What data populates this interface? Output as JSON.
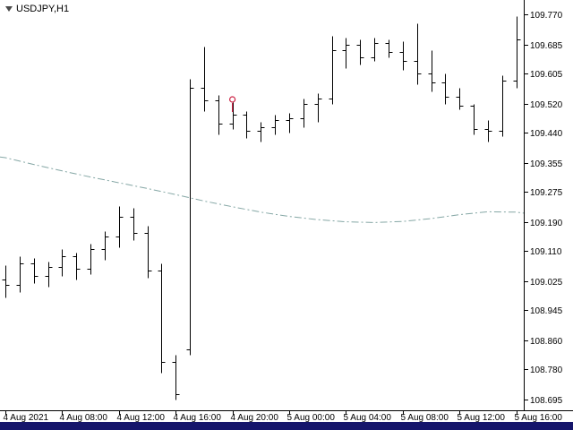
{
  "window": {
    "symbol_label": "USDJPY,H1"
  },
  "colors": {
    "background": "#ffffff",
    "bar": "#000000",
    "axis_text": "#000000",
    "axis_line": "#000000",
    "ma_line": "#85a7a5",
    "marker": "#cc2244",
    "taskbar_strip": "#15156b"
  },
  "chart_data": {
    "type": "ohlc-bar",
    "title": "USDJPY,H1",
    "symbol": "USDJPY",
    "timeframe": "H1",
    "ylim": [
      108.68,
      109.79
    ],
    "grid": "none",
    "legend": "none",
    "y_ticks": [
      "109.770",
      "109.685",
      "109.605",
      "109.520",
      "109.440",
      "109.355",
      "109.275",
      "109.190",
      "109.110",
      "109.025",
      "108.945",
      "108.860",
      "108.780",
      "108.695"
    ],
    "x_ticks": [
      {
        "label": "4 Aug 2021",
        "bar": 0
      },
      {
        "label": "4 Aug 08:00",
        "bar": 4
      },
      {
        "label": "4 Aug 12:00",
        "bar": 8
      },
      {
        "label": "4 Aug 16:00",
        "bar": 12
      },
      {
        "label": "4 Aug 20:00",
        "bar": 16
      },
      {
        "label": "5 Aug 00:00",
        "bar": 20
      },
      {
        "label": "5 Aug 04:00",
        "bar": 24
      },
      {
        "label": "5 Aug 08:00",
        "bar": 28
      },
      {
        "label": "5 Aug 12:00",
        "bar": 32
      },
      {
        "label": "5 Aug 16:00",
        "bar": 36
      }
    ],
    "bars": [
      [
        "4 Aug 04:00",
        109.03,
        109.07,
        108.98,
        109.015
      ],
      [
        "4 Aug 05:00",
        109.015,
        109.095,
        108.995,
        109.075
      ],
      [
        "4 Aug 06:00",
        109.075,
        109.09,
        109.02,
        109.04
      ],
      [
        "4 Aug 07:00",
        109.04,
        109.08,
        109.01,
        109.065
      ],
      [
        "4 Aug 08:00",
        109.065,
        109.115,
        109.04,
        109.095
      ],
      [
        "4 Aug 09:00",
        109.095,
        109.105,
        109.03,
        109.06
      ],
      [
        "4 Aug 10:00",
        109.06,
        109.13,
        109.045,
        109.115
      ],
      [
        "4 Aug 11:00",
        109.115,
        109.165,
        109.085,
        109.15
      ],
      [
        "4 Aug 12:00",
        109.15,
        109.235,
        109.12,
        109.205
      ],
      [
        "4 Aug 13:00",
        109.205,
        109.23,
        109.14,
        109.16
      ],
      [
        "4 Aug 14:00",
        109.16,
        109.18,
        109.035,
        109.055
      ],
      [
        "4 Aug 15:00",
        109.055,
        109.075,
        108.77,
        108.8
      ],
      [
        "4 Aug 16:00",
        108.8,
        108.82,
        108.695,
        108.71
      ],
      [
        "4 Aug 17:00",
        108.835,
        109.59,
        108.82,
        109.565
      ],
      [
        "4 Aug 18:00",
        109.565,
        109.68,
        109.5,
        109.53
      ],
      [
        "4 Aug 19:00",
        109.53,
        109.545,
        109.435,
        109.465
      ],
      [
        "4 Aug 20:00",
        109.465,
        109.525,
        109.45,
        109.49
      ],
      [
        "4 Aug 21:00",
        109.49,
        109.5,
        109.425,
        109.445
      ],
      [
        "4 Aug 22:00",
        109.445,
        109.47,
        109.415,
        109.455
      ],
      [
        "4 Aug 23:00",
        109.455,
        109.49,
        109.435,
        109.475
      ],
      [
        "5 Aug 00:00",
        109.475,
        109.495,
        109.44,
        109.48
      ],
      [
        "5 Aug 01:00",
        109.48,
        109.535,
        109.455,
        109.52
      ],
      [
        "5 Aug 02:00",
        109.52,
        109.55,
        109.47,
        109.535
      ],
      [
        "5 Aug 03:00",
        109.535,
        109.71,
        109.52,
        109.67
      ],
      [
        "5 Aug 04:00",
        109.67,
        109.705,
        109.62,
        109.685
      ],
      [
        "5 Aug 05:00",
        109.685,
        109.7,
        109.63,
        109.65
      ],
      [
        "5 Aug 06:00",
        109.65,
        109.705,
        109.64,
        109.69
      ],
      [
        "5 Aug 07:00",
        109.69,
        109.7,
        109.65,
        109.665
      ],
      [
        "5 Aug 08:00",
        109.665,
        109.695,
        109.615,
        109.64
      ],
      [
        "5 Aug 09:00",
        109.64,
        109.745,
        109.575,
        109.605
      ],
      [
        "5 Aug 10:00",
        109.605,
        109.67,
        109.555,
        109.58
      ],
      [
        "5 Aug 11:00",
        109.58,
        109.605,
        109.52,
        109.54
      ],
      [
        "5 Aug 12:00",
        109.54,
        109.565,
        109.505,
        109.515
      ],
      [
        "5 Aug 13:00",
        109.515,
        109.52,
        109.435,
        109.45
      ],
      [
        "5 Aug 14:00",
        109.45,
        109.475,
        109.415,
        109.445
      ],
      [
        "5 Aug 15:00",
        109.445,
        109.6,
        109.43,
        109.585
      ],
      [
        "5 Aug 16:00",
        109.585,
        109.765,
        109.565,
        109.7
      ]
    ],
    "ma_line": {
      "style": "dash-dot",
      "points": [
        [
          -0.4,
          109.372
        ],
        [
          0,
          109.37
        ],
        [
          2,
          109.351
        ],
        [
          4,
          109.333
        ],
        [
          6,
          109.316
        ],
        [
          8,
          109.3
        ],
        [
          10,
          109.284
        ],
        [
          12,
          109.267
        ],
        [
          14,
          109.249
        ],
        [
          16,
          109.233
        ],
        [
          18,
          109.218
        ],
        [
          20,
          109.206
        ],
        [
          22,
          109.197
        ],
        [
          24,
          109.191
        ],
        [
          26,
          109.189
        ],
        [
          28,
          109.192
        ],
        [
          30,
          109.2
        ],
        [
          32,
          109.211
        ],
        [
          34,
          109.219
        ],
        [
          36,
          109.218
        ],
        [
          36.6,
          109.215
        ]
      ]
    },
    "marker": {
      "bar": 16,
      "price": 109.52,
      "shape": "sell-flag"
    }
  }
}
